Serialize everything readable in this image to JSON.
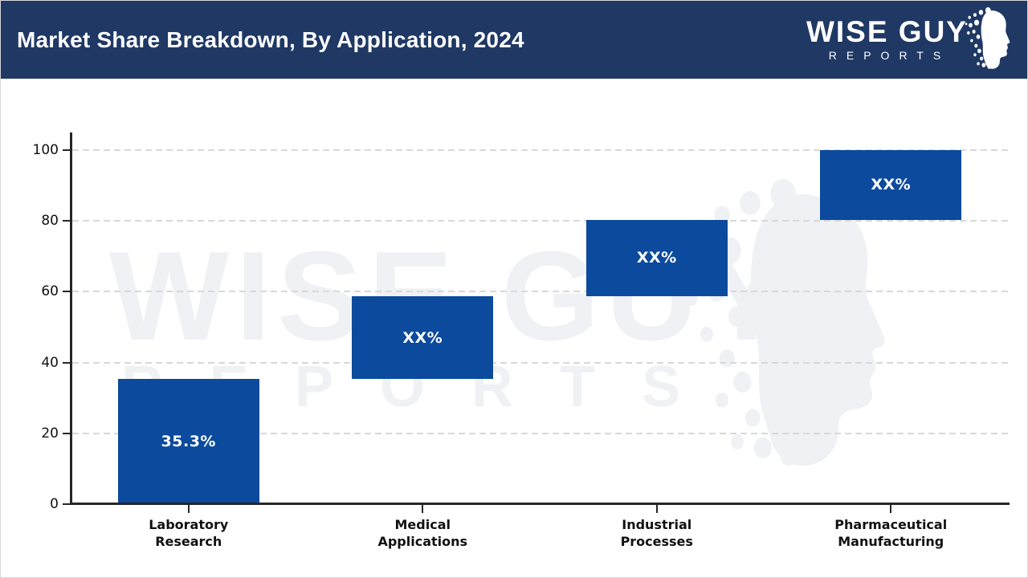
{
  "header": {
    "title": "Market Share Breakdown, By Application, 2024",
    "logo": {
      "line1": "WISE GUY",
      "line2": "REPORTS"
    }
  },
  "watermark": {
    "line1": "WISE GUY",
    "line2": "REPORTS"
  },
  "colors": {
    "header_bg": "#1f3864",
    "bar_fill": "#0c4a9d",
    "grid": "#d8d8d8",
    "axis": "#262626",
    "bar_label": "#ffffff",
    "watermark": "#f0f1f4"
  },
  "chart_data": {
    "type": "bar",
    "subtype": "waterfall-stacked-breakdown",
    "title": "Market Share Breakdown, By Application, 2024",
    "categories": [
      "Laboratory Research",
      "Medical Applications",
      "Industrial Processes",
      "Pharmaceutical Manufacturing"
    ],
    "category_label_lines": [
      [
        "Laboratory",
        "Research"
      ],
      [
        "Medical",
        "Applications"
      ],
      [
        "Industrial",
        "Processes"
      ],
      [
        "Pharmaceutical",
        "Manufacturing"
      ]
    ],
    "segments": [
      {
        "category": "Laboratory Research",
        "start": 0,
        "end": 35.3,
        "label": "35.3%"
      },
      {
        "category": "Medical Applications",
        "start": 35.3,
        "end": 58.8,
        "label": "XX%"
      },
      {
        "category": "Industrial Processes",
        "start": 58.8,
        "end": 80.3,
        "label": "XX%"
      },
      {
        "category": "Pharmaceutical Manufacturing",
        "start": 80.3,
        "end": 100,
        "label": "XX%"
      }
    ],
    "xlabel": "",
    "ylabel": "",
    "ylim": [
      0,
      105
    ],
    "yticks": [
      0,
      20,
      40,
      60,
      80,
      100
    ],
    "grid": "horizontal-dashed",
    "legend": "none"
  }
}
